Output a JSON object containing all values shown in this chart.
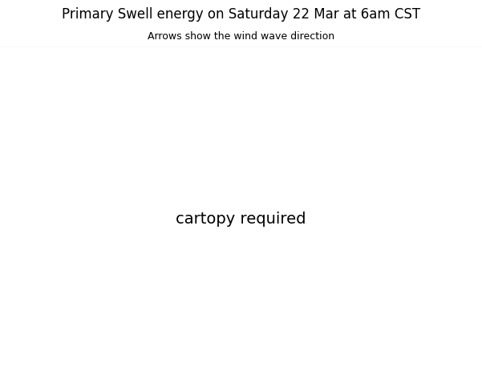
{
  "title": "Primary Swell energy on Saturday 22 Mar at 6am CST",
  "subtitle": "Arrows show the wind wave direction",
  "title_fontsize": 12,
  "subtitle_fontsize": 9,
  "fig_width": 6.01,
  "fig_height": 4.88,
  "dpi": 100,
  "background_color": "#ffffff",
  "extent": [
    -145,
    -60,
    24,
    73
  ],
  "arrow_color": "#44cccc",
  "border_color": "#000000",
  "land_color": "#b0b0b0",
  "water_color": "#000000",
  "ocean_yellow": "#ffff88",
  "ocean_blue": "#0000cc",
  "title_color": "#000000"
}
